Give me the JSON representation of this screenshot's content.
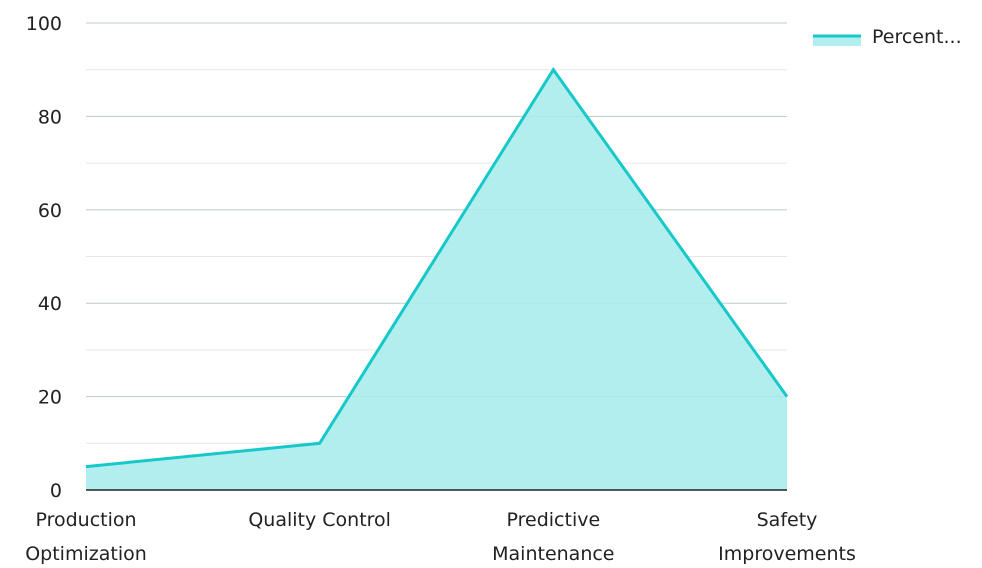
{
  "chart_data": {
    "type": "area",
    "title": "",
    "xlabel": "",
    "ylabel": "",
    "categories": [
      [
        "Production",
        "Optimization"
      ],
      [
        "Quality Control"
      ],
      [
        "Predictive",
        "Maintenance"
      ],
      [
        "Safety",
        "Improvements"
      ]
    ],
    "series": [
      {
        "name": "Percent...",
        "values": [
          5,
          10,
          90,
          20
        ],
        "line_color": "#17c8c9",
        "fill_color": "#b3eeee"
      }
    ],
    "ylim": [
      0,
      100
    ],
    "yticks": [
      0,
      20,
      40,
      60,
      80,
      100
    ],
    "ytick_labels": [
      "0",
      "20",
      "40",
      "60",
      "80",
      "100"
    ],
    "grid": true,
    "legend_position": "top-right"
  }
}
